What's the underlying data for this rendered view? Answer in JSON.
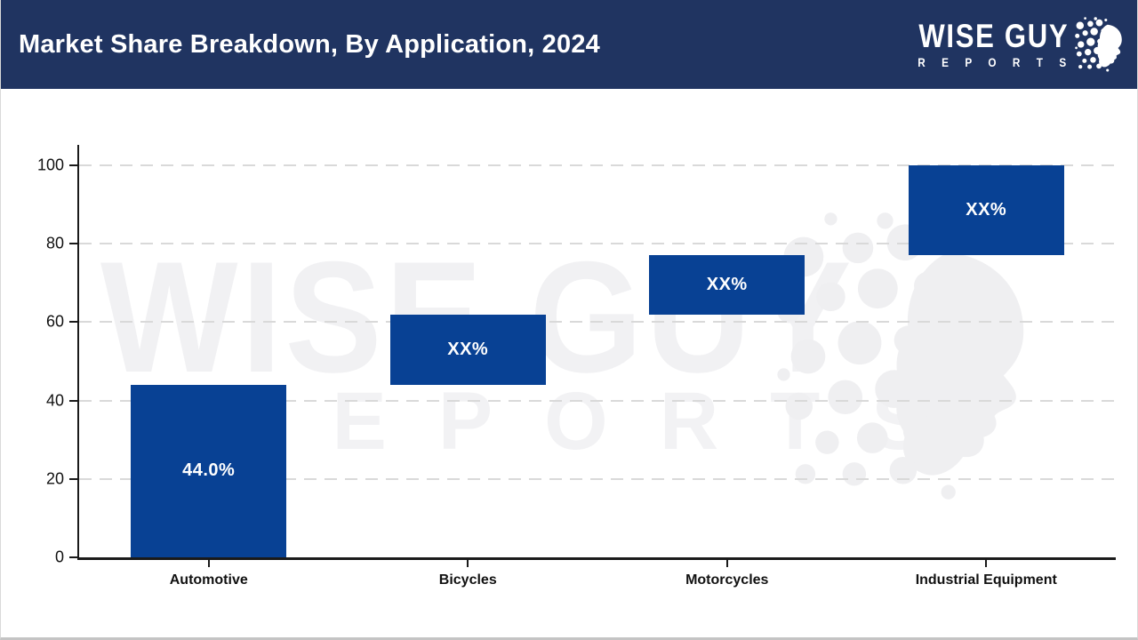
{
  "header": {
    "title": "Market Share Breakdown, By Application, 2024",
    "logo": {
      "line1": "WISE GUY",
      "line2": "R E P O R T S"
    }
  },
  "watermark": {
    "line1": "WISE GUY",
    "line2": "REPORTS"
  },
  "colors": {
    "header_bg": "#203461",
    "bar_blue": "#084194",
    "bar_label_text": "#ffffff",
    "gridline": "#d9d9d9",
    "axis": "#1a1a1a",
    "watermark_gray": "#f1f1f3"
  },
  "chart_data": {
    "type": "bar",
    "subtype": "waterfall",
    "title": "Market Share Breakdown, By Application, 2024",
    "xlabel": "",
    "ylabel": "",
    "categories": [
      "Automotive",
      "Bicycles",
      "Motorcycles",
      "Industrial Equipment"
    ],
    "bars": [
      {
        "category": "Automotive",
        "start": 0,
        "end": 44,
        "value": 44,
        "label": "44.0%"
      },
      {
        "category": "Bicycles",
        "start": 44,
        "end": 62,
        "value": 18,
        "label": "XX%"
      },
      {
        "category": "Motorcycles",
        "start": 62,
        "end": 77,
        "value": 15,
        "label": "XX%"
      },
      {
        "category": "Industrial Equipment",
        "start": 77,
        "end": 100,
        "value": 23,
        "label": "XX%"
      }
    ],
    "yticks": [
      0,
      20,
      40,
      60,
      80,
      100
    ],
    "ylim": [
      0,
      105
    ],
    "grid": "dashed horizontal",
    "legend": "none",
    "bar_color": "#084194"
  }
}
